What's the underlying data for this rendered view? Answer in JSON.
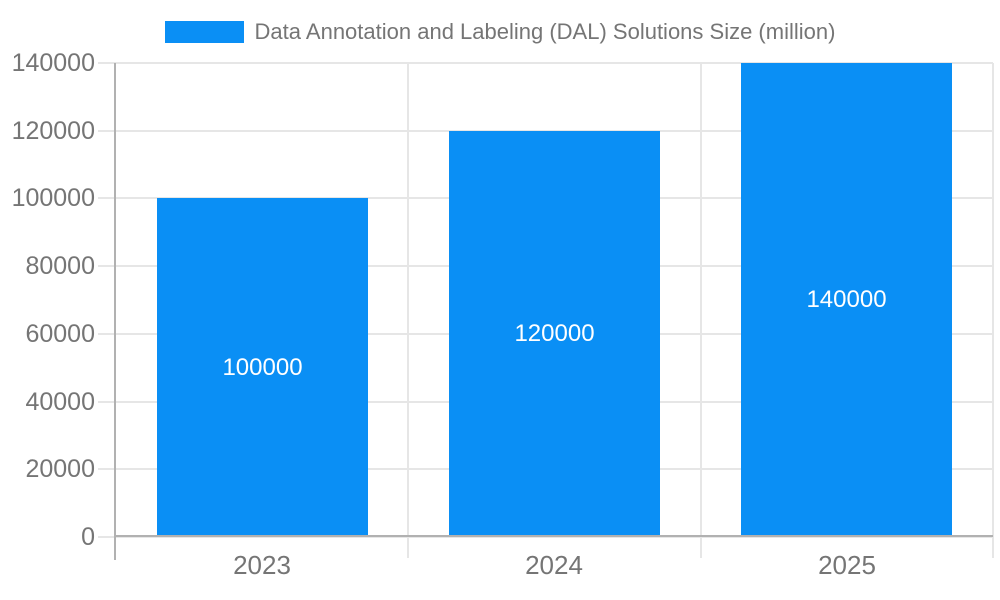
{
  "chart_data": {
    "type": "bar",
    "title": "Data Annotation and Labeling (DAL) Solutions Size (million)",
    "categories": [
      "2023",
      "2024",
      "2025"
    ],
    "values": [
      100000,
      120000,
      140000
    ],
    "bar_value_labels": [
      "100000",
      "120000",
      "140000"
    ],
    "xlabel": "",
    "ylabel": "",
    "ylim": [
      0,
      140000
    ],
    "yticks": [
      0,
      20000,
      40000,
      60000,
      80000,
      100000,
      120000,
      140000
    ],
    "ytick_labels": [
      "0",
      "20000",
      "40000",
      "60000",
      "80000",
      "100000",
      "120000",
      "140000"
    ],
    "grid": true,
    "legend_position": "top-center",
    "legend_entries": [
      "Data Annotation and Labeling (DAL) Solutions Size (million)"
    ]
  },
  "colors": {
    "bar": "#0a8ff5",
    "gridline": "#e6e6e6",
    "axis_line": "#b1b1b1",
    "axis_label": "#757575",
    "value_label": "#ffffff",
    "background": "#ffffff"
  }
}
